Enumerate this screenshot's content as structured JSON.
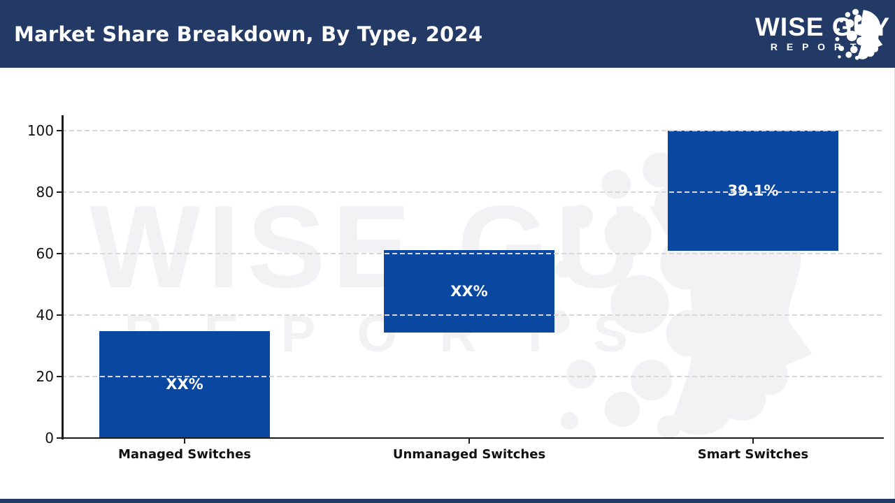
{
  "header": {
    "title": "Market Share Breakdown, By Type, 2024",
    "logo_line1": "WISE GUY",
    "logo_line2": "R E P O R T S"
  },
  "watermark": {
    "line1": "WISE GUY",
    "line2": "R E P O R T S"
  },
  "chart_data": {
    "type": "bar",
    "subtype": "floating-segment-waterfall",
    "title": "Market Share Breakdown, By Type, 2024",
    "categories": [
      "Managed Switches",
      "Unmanaged Switches",
      "Smart Switches"
    ],
    "segments": [
      {
        "category": "Managed Switches",
        "start": 0,
        "end": 34.7,
        "value_label": "XX%"
      },
      {
        "category": "Unmanaged Switches",
        "start": 34.3,
        "end": 61.0,
        "value_label": "XX%"
      },
      {
        "category": "Smart Switches",
        "start": 60.9,
        "end": 100,
        "value_label": "39.1%"
      }
    ],
    "values": [
      34.7,
      26.7,
      39.1
    ],
    "xlabel": "",
    "ylabel": "",
    "yticks": [
      0,
      20,
      40,
      60,
      80,
      100
    ],
    "ylim": [
      0,
      105
    ],
    "grid": "dashed-horizontal",
    "legend": "none",
    "unit": "percent"
  },
  "colors": {
    "header_bg": "#233A66",
    "footer_bg": "#233A66",
    "bar": "#0A47A1",
    "grid": "#d8d8d8",
    "axis": "#1c1c1c",
    "bar_label": "#ffffff",
    "watermark": "#f2f2f4"
  }
}
